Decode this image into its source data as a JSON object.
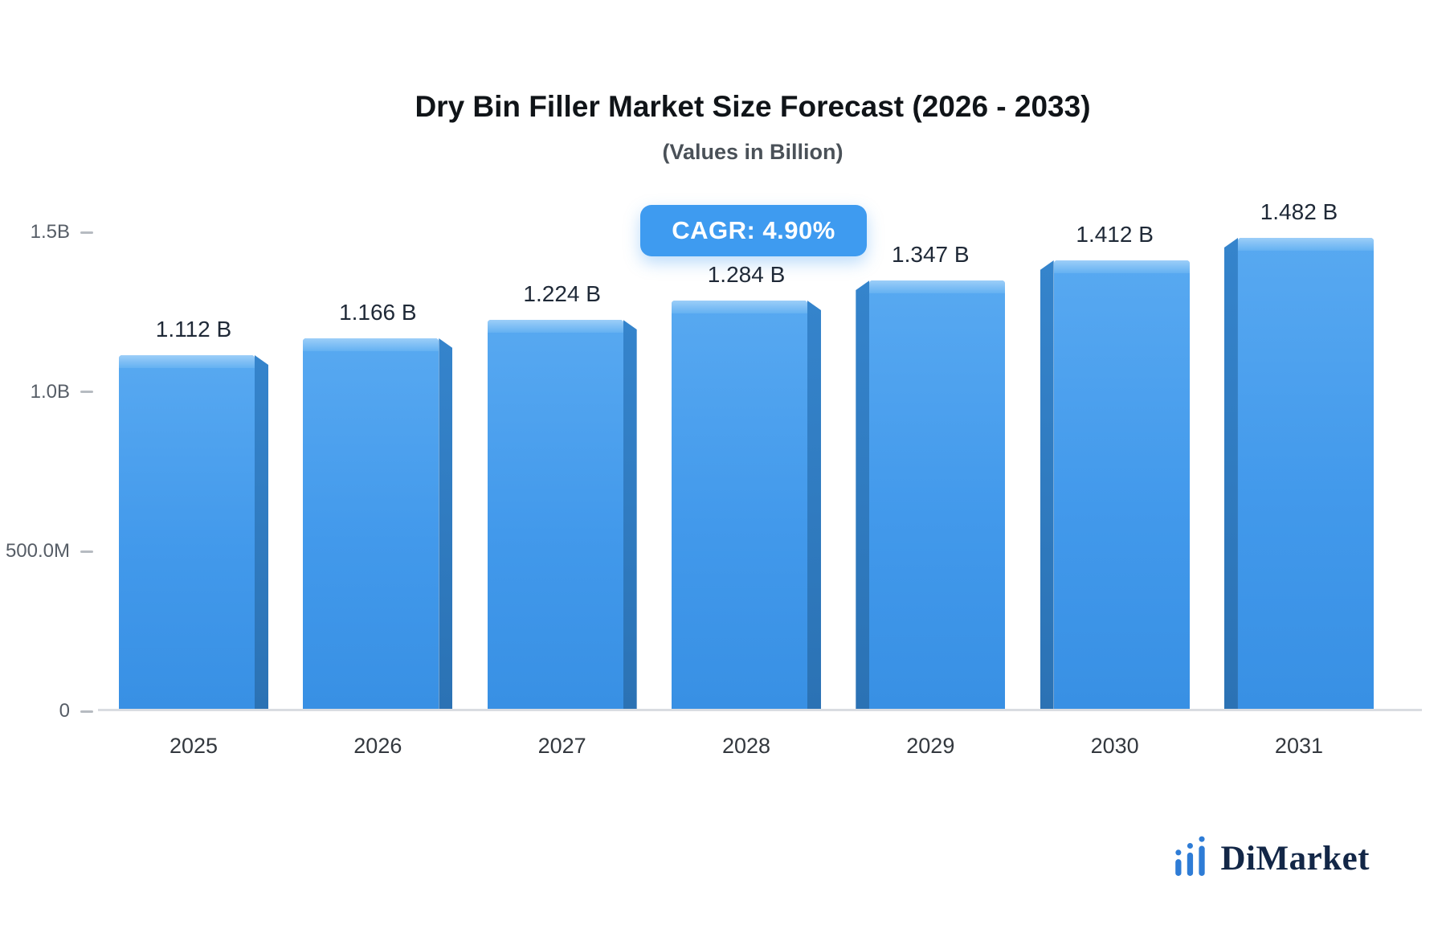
{
  "title": "Dry Bin Filler Market Size Forecast (2026 - 2033)",
  "subtitle": "(Values in Billion)",
  "badge": {
    "label": "CAGR: 4.90%"
  },
  "logo": {
    "text": "DiMarket",
    "icon": "bar-chart-logo-icon"
  },
  "colors": {
    "bar_main": "#3E9AEC",
    "bar_top_band": "#8CC6F6",
    "bar_side": "#2E7FC8",
    "badge_bg": "#3E9BF0",
    "logo_blue": "#2E7CD6",
    "logo_text": "#132747",
    "axis_line": "#D9DCE1"
  },
  "chart_data": {
    "type": "bar",
    "title": "Dry Bin Filler Market Size Forecast (2026 - 2033)",
    "subtitle": "(Values in Billion)",
    "categories": [
      "2025",
      "2026",
      "2027",
      "2028",
      "2029",
      "2030",
      "2031"
    ],
    "values": [
      1.112,
      1.166,
      1.224,
      1.284,
      1.347,
      1.412,
      1.482
    ],
    "value_labels": [
      "1.112 B",
      "1.166 B",
      "1.224 B",
      "1.284 B",
      "1.347 B",
      "1.412 B",
      "1.482 B"
    ],
    "xlabel": "",
    "ylabel": "",
    "ylim": [
      0,
      1.5
    ],
    "y_ticks": [
      {
        "label": "1.5B",
        "value": 1.5
      },
      {
        "label": "1.0B",
        "value": 1.0
      },
      {
        "label": "500.0M",
        "value": 0.5
      },
      {
        "label": "0",
        "value": 0
      }
    ],
    "grid": false,
    "legend": "none",
    "annotation": "CAGR: 4.90%"
  }
}
